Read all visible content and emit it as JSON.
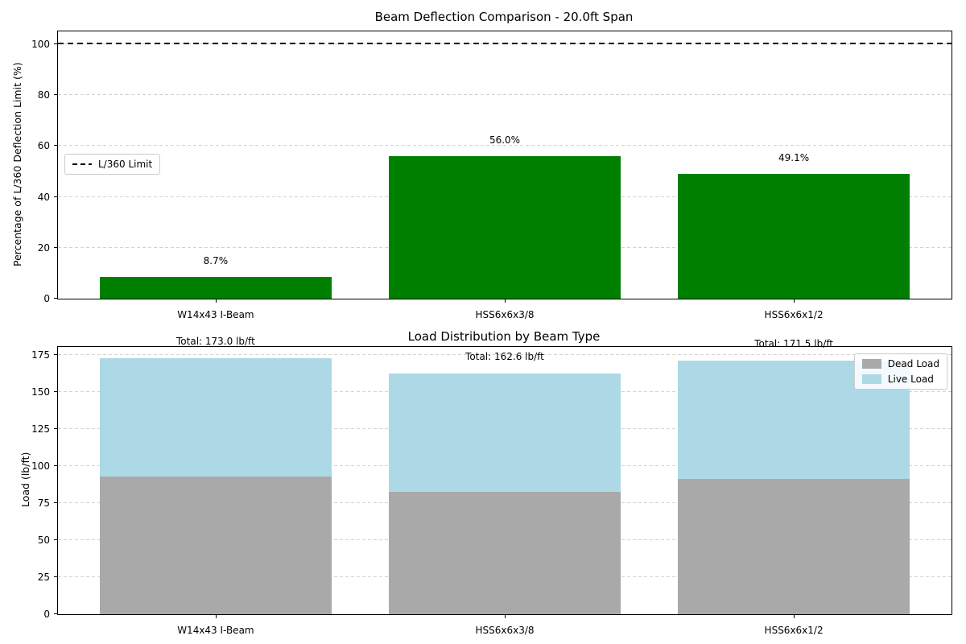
{
  "figure": {
    "background": "#ffffff"
  },
  "chart_data": [
    {
      "type": "bar",
      "title": "Beam Deflection Comparison - 20.0ft Span",
      "xlabel": "",
      "ylabel": "Percentage of L/360 Deflection Limit (%)",
      "categories": [
        "W14x43 I-Beam",
        "HSS6x6x3/8",
        "HSS6x6x1/2"
      ],
      "values": [
        8.7,
        56.0,
        49.1
      ],
      "bar_labels": [
        "8.7%",
        "56.0%",
        "49.1%"
      ],
      "bar_color": "#008000",
      "yticks": [
        0,
        20,
        40,
        60,
        80,
        100
      ],
      "ylim": [
        0,
        105
      ],
      "grid": "horizontal-dashed",
      "reference_line": {
        "value": 100,
        "color": "#000000",
        "style": "dashed",
        "label": "L/360 Limit"
      },
      "legend": {
        "position": "center-left",
        "entries": [
          {
            "label": "L/360 Limit",
            "swatch": "dashed-line",
            "color": "#000000"
          }
        ]
      }
    },
    {
      "type": "stacked-bar",
      "title": "Load Distribution by Beam Type",
      "xlabel": "",
      "ylabel": "Load (lb/ft)",
      "categories": [
        "W14x43 I-Beam",
        "HSS6x6x3/8",
        "HSS6x6x1/2"
      ],
      "series": [
        {
          "name": "Dead Load",
          "values": [
            93.0,
            82.6,
            91.5
          ],
          "color": "#a9a9a9"
        },
        {
          "name": "Live Load",
          "values": [
            80.0,
            80.0,
            80.0
          ],
          "color": "#add8e6"
        }
      ],
      "totals": [
        173.0,
        162.6,
        171.5
      ],
      "total_labels": [
        "Total: 173.0 lb/ft",
        "Total: 162.6 lb/ft",
        "Total: 171.5 lb/ft"
      ],
      "yticks": [
        0,
        25,
        50,
        75,
        100,
        125,
        150,
        175
      ],
      "ylim": [
        0,
        180.5
      ],
      "grid": "horizontal-dashed",
      "legend": {
        "position": "top-right",
        "entries": [
          {
            "label": "Dead Load",
            "swatch": "patch",
            "color": "#a9a9a9"
          },
          {
            "label": "Live Load",
            "swatch": "patch",
            "color": "#add8e6"
          }
        ]
      }
    }
  ]
}
